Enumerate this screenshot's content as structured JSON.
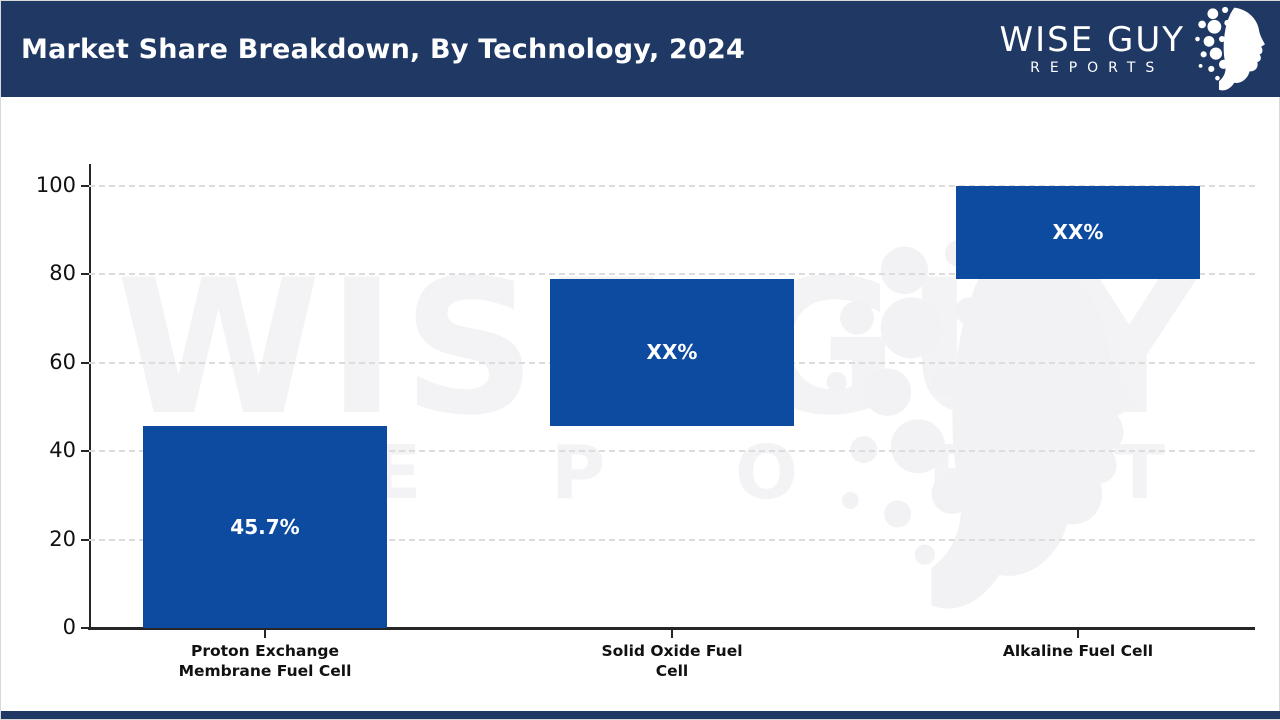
{
  "header": {
    "title": "Market Share Breakdown, By Technology, 2024",
    "bg_color": "#1F3864",
    "logo": {
      "name": "WISE GUY",
      "subtitle": "REPORTS",
      "icon": "dotted-head-profile-icon"
    }
  },
  "watermark": {
    "line1": "WISE GUY",
    "line2": "R E P O R T S",
    "icon": "dotted-head-profile-watermark"
  },
  "chart_data": {
    "type": "bar",
    "subtype": "stacked-waterfall",
    "title": "Market Share Breakdown, By Technology, 2024",
    "categories": [
      "Proton Exchange\nMembrane Fuel Cell",
      "Solid Oxide Fuel\nCell",
      "Alkaline Fuel Cell"
    ],
    "segments": [
      {
        "category": "Proton Exchange Membrane Fuel Cell",
        "from": 0,
        "to": 45.7,
        "label": "45.7%"
      },
      {
        "category": "Solid Oxide Fuel Cell",
        "from": 45.7,
        "to": 79,
        "label": "XX%"
      },
      {
        "category": "Alkaline Fuel Cell",
        "from": 79,
        "to": 100,
        "label": "XX%"
      }
    ],
    "xlabel": "",
    "ylabel": "",
    "ylim": [
      0,
      100
    ],
    "yticks": [
      0,
      20,
      40,
      60,
      80,
      100
    ],
    "grid": "horizontal-dashed",
    "legend": "none",
    "bar_color": "#0D4BA0",
    "bar_label_color": "#FFFFFF",
    "axis_color": "#262626"
  },
  "footer": {
    "bar_color": "#1F3864"
  }
}
